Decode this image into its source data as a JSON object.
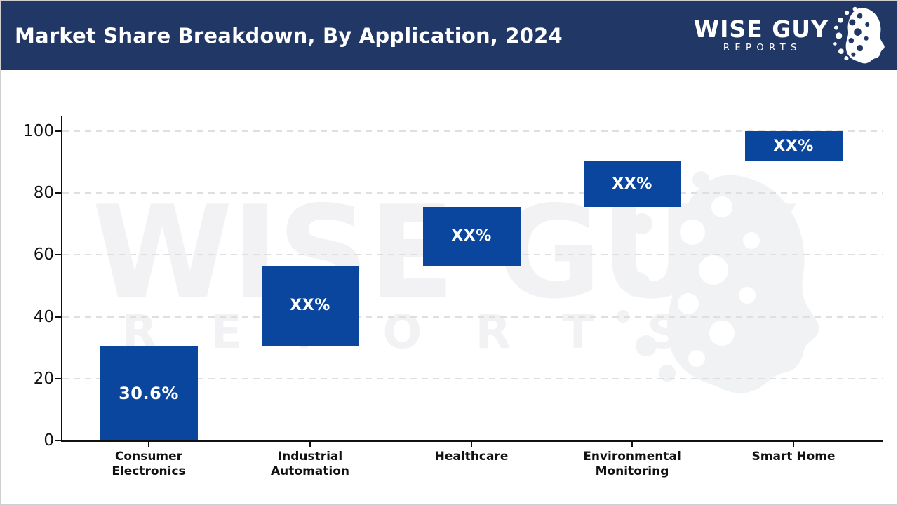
{
  "header": {
    "title": "Market Share Breakdown, By Application, 2024",
    "logo": {
      "name_line": "WISE GUY",
      "reports_line": "REPORTS"
    }
  },
  "watermark": {
    "name_line": "WISE GUY",
    "reports_line": "REPORTS"
  },
  "chart_data": {
    "type": "bar",
    "subtype": "waterfall",
    "title": "Market Share Breakdown, By Application, 2024",
    "categories": [
      "Consumer Electronics",
      "Industrial Automation",
      "Healthcare",
      "Environmental Monitoring",
      "Smart Home"
    ],
    "category_lines": [
      [
        "Consumer",
        "Electronics"
      ],
      [
        "Industrial",
        "Automation"
      ],
      [
        "Healthcare"
      ],
      [
        "Environmental",
        "Monitoring"
      ],
      [
        "Smart Home"
      ]
    ],
    "segments": [
      {
        "category": "Consumer Electronics",
        "start": 0,
        "end": 30.6,
        "label": "30.6%"
      },
      {
        "category": "Industrial Automation",
        "start": 30.6,
        "end": 56.5,
        "label": "XX%"
      },
      {
        "category": "Healthcare",
        "start": 56.5,
        "end": 75.5,
        "label": "XX%"
      },
      {
        "category": "Environmental Monitoring",
        "start": 75.5,
        "end": 90.3,
        "label": "XX%"
      },
      {
        "category": "Smart Home",
        "start": 90.3,
        "end": 100.0,
        "label": "XX%"
      }
    ],
    "values_masked_as": "XX%",
    "ylim": [
      0,
      100
    ],
    "yticks": [
      0,
      20,
      40,
      60,
      80,
      100
    ],
    "grid": "dashed-horizontal",
    "legend": "none",
    "bar_color": "#0a459e",
    "bar_label_color": "#ffffff",
    "axis_color": "#111111",
    "header_bg_color": "#213765",
    "watermark_color": "#f2f2f4"
  }
}
